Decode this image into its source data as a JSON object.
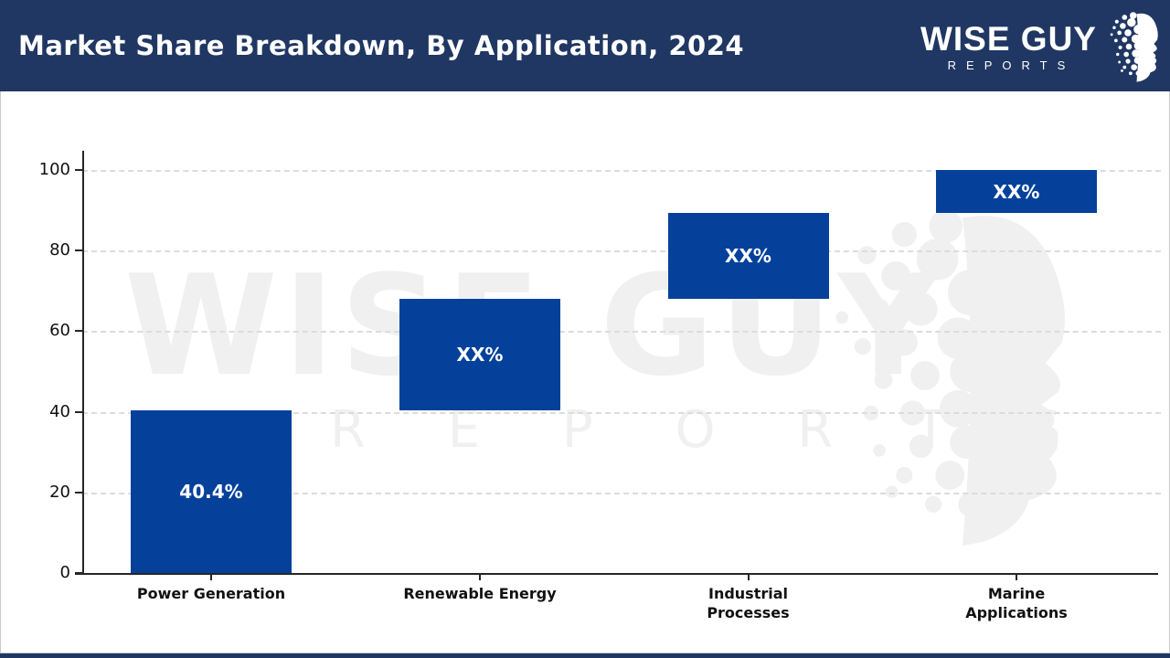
{
  "header": {
    "title": "Market Share Breakdown, By Application, 2024",
    "logo": {
      "line1": "WISE GUY",
      "line2": "REPORTS"
    }
  },
  "watermark": {
    "line1": "WISE GUY",
    "line2": "R E P O R T S"
  },
  "colors": {
    "header_bg": "#203763",
    "footer_bg": "#203763",
    "bar": "#05419b",
    "bar_label": "#ffffff",
    "grid": "#dcdcdc",
    "axis": "#262626",
    "watermark": "#f0f0f0"
  },
  "chart_data": {
    "type": "bar",
    "subtype": "waterfall",
    "title": "Market Share Breakdown, By Application, 2024",
    "categories": [
      "Power Generation",
      "Renewable Energy",
      "Industrial Processes",
      "Marine Applications"
    ],
    "category_label_lines": [
      [
        "Power Generation"
      ],
      [
        "Renewable Energy"
      ],
      [
        "Industrial",
        "Processes"
      ],
      [
        "Marine",
        "Applications"
      ]
    ],
    "series": [
      {
        "name": "Market share (%)",
        "segments": [
          {
            "category": "Power Generation",
            "start": 0,
            "end": 40.4,
            "label": "40.4%"
          },
          {
            "category": "Renewable Energy",
            "start": 40.4,
            "end": 68.0,
            "label": "XX%"
          },
          {
            "category": "Industrial Processes",
            "start": 68.0,
            "end": 89.3,
            "label": "XX%"
          },
          {
            "category": "Marine Applications",
            "start": 89.3,
            "end": 100.0,
            "label": "XX%"
          }
        ]
      }
    ],
    "ylim": [
      0,
      100
    ],
    "yticks": [
      0,
      20,
      40,
      60,
      80,
      100
    ],
    "grid": "horizontal-dashed",
    "legend": "none",
    "xlabel": "",
    "ylabel": ""
  }
}
